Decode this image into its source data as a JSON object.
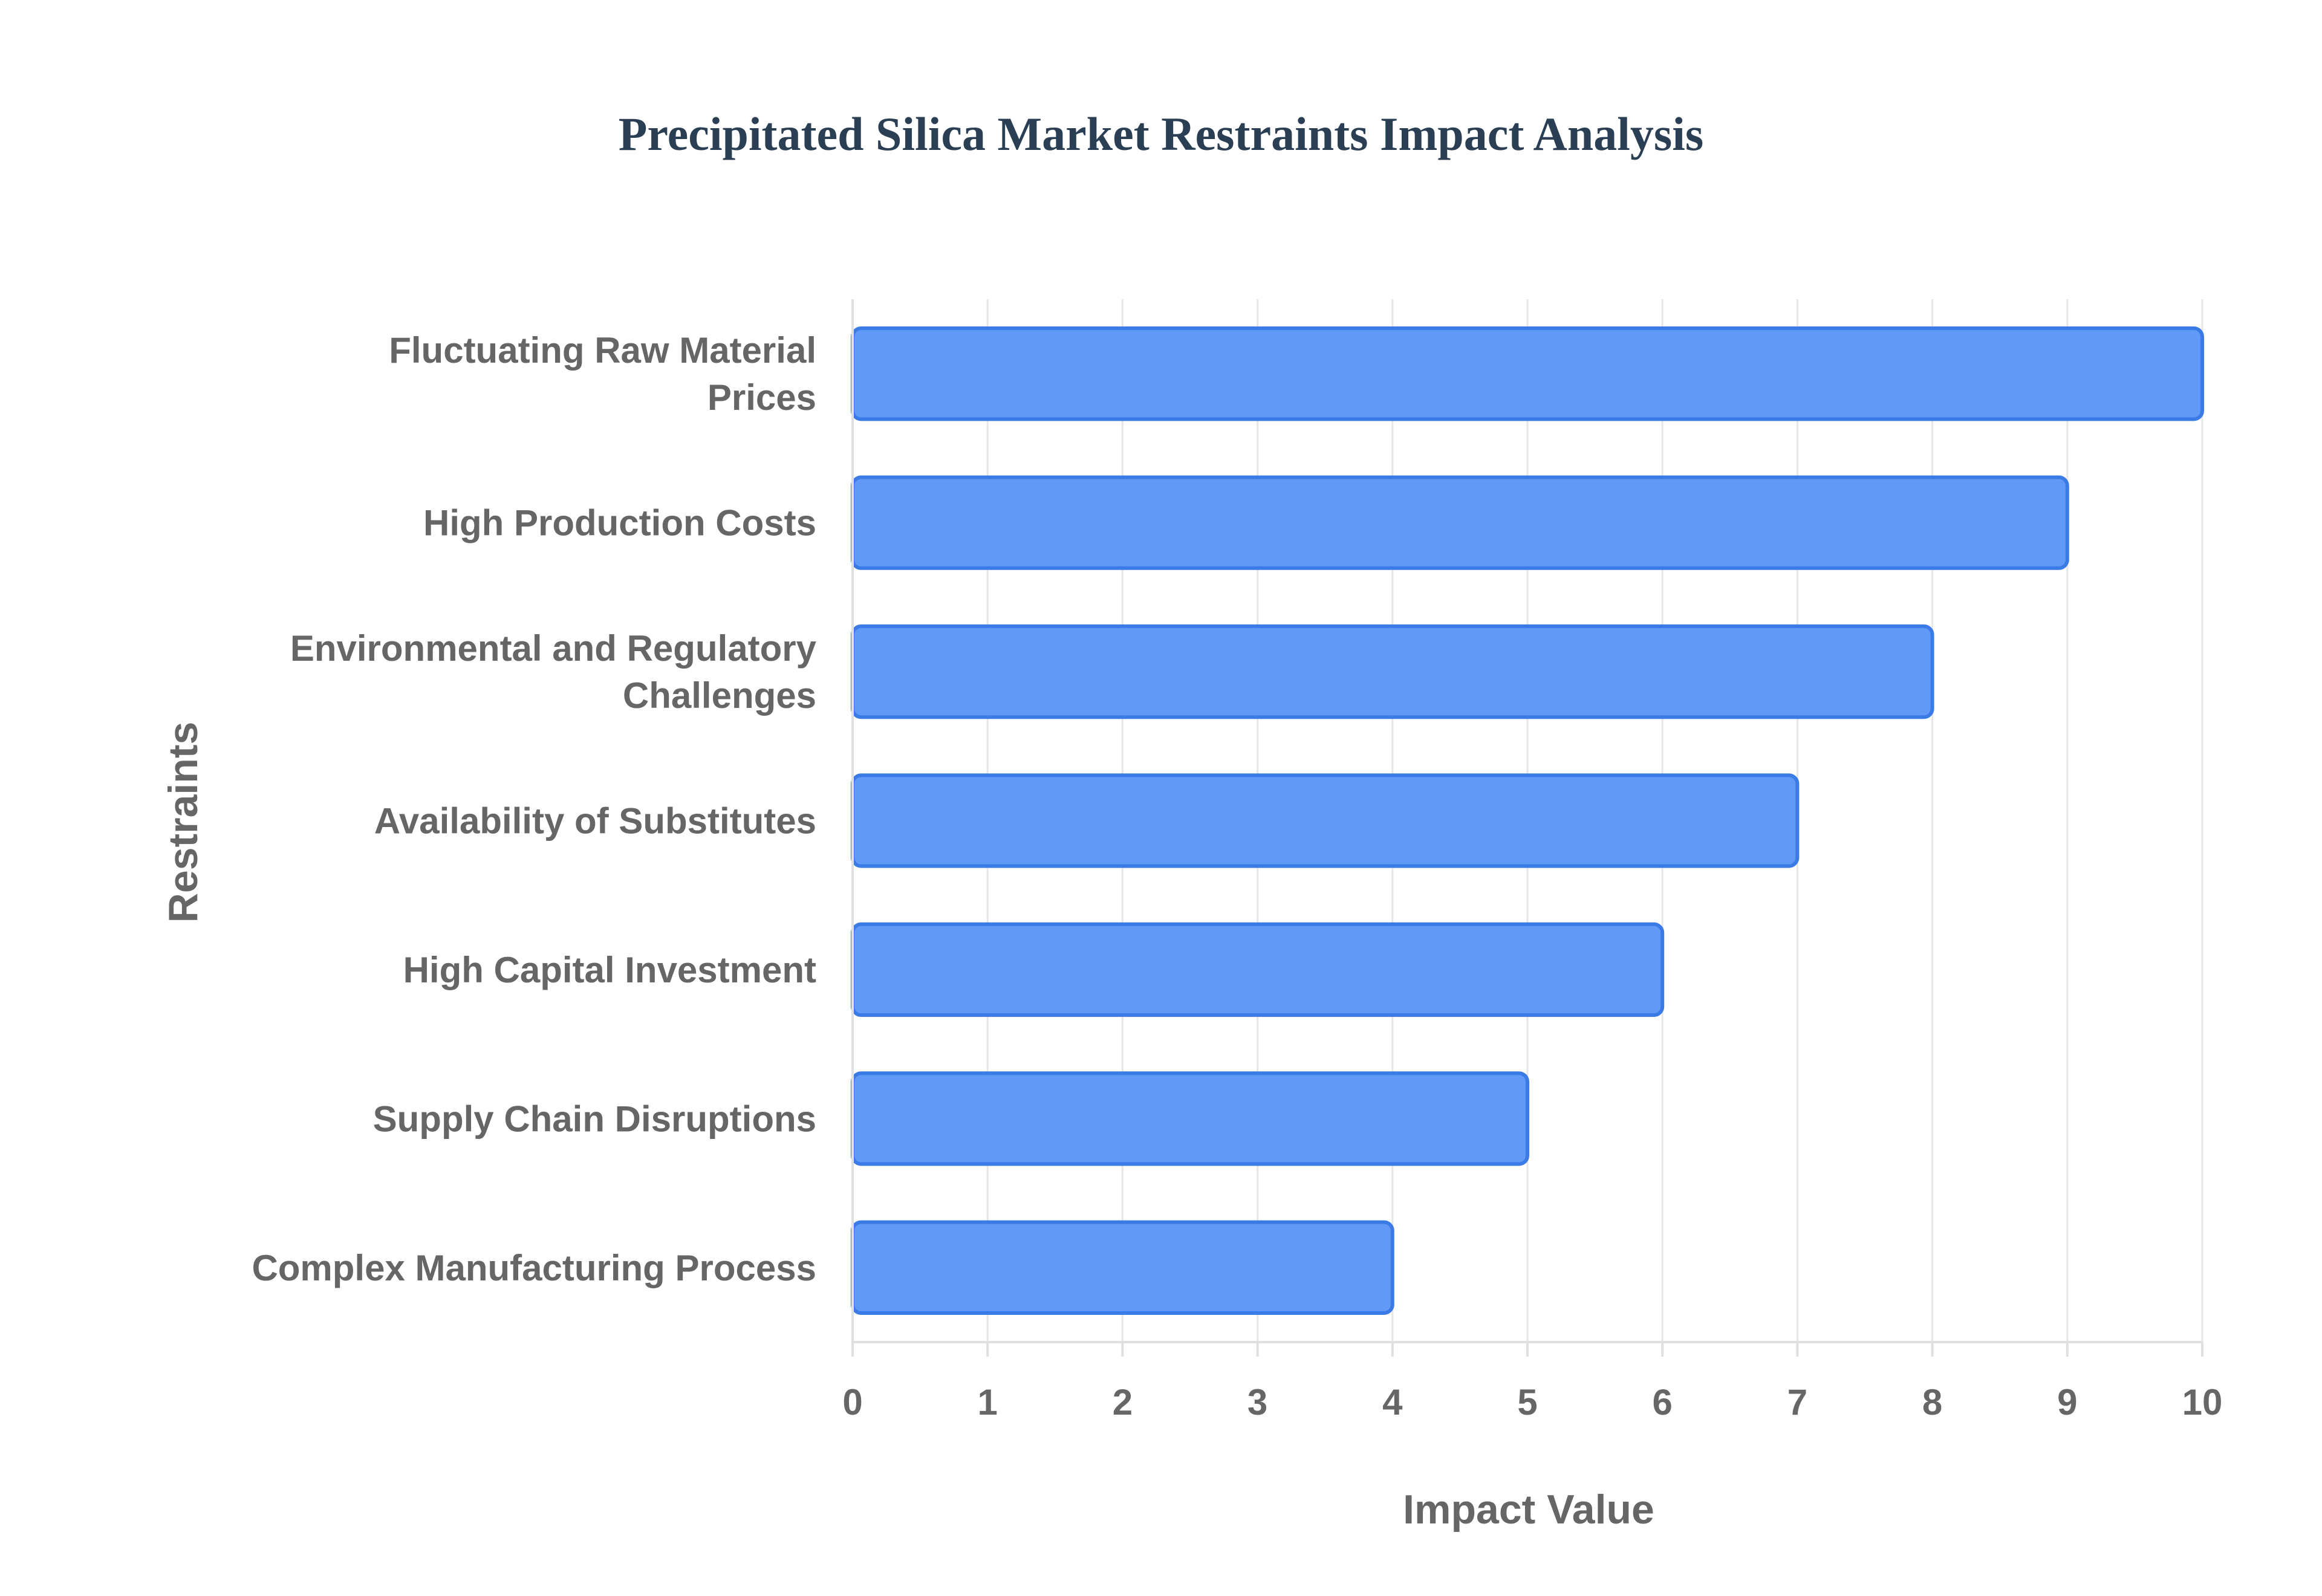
{
  "chart_data": {
    "type": "bar",
    "orientation": "horizontal",
    "title": "Precipitated Silica Market Restraints Impact Analysis",
    "xlabel": "Impact Value",
    "ylabel": "Restraints",
    "xlim": [
      0,
      10
    ],
    "xticks": [
      "0",
      "1",
      "2",
      "3",
      "4",
      "5",
      "6",
      "7",
      "8",
      "9",
      "10"
    ],
    "grid": true,
    "legend": "none",
    "bar_color": "#6199f7",
    "bar_border_color": "#3b7be6",
    "categories": [
      [
        "Fluctuating Raw Material",
        "Prices"
      ],
      [
        "High Production Costs"
      ],
      [
        "Environmental and Regulatory",
        "Challenges"
      ],
      [
        "Availability of Substitutes"
      ],
      [
        "High Capital Investment"
      ],
      [
        "Supply Chain Disruptions"
      ],
      [
        "Complex Manufacturing Process"
      ]
    ],
    "values": [
      10,
      9,
      8,
      7,
      6,
      5,
      4
    ]
  }
}
